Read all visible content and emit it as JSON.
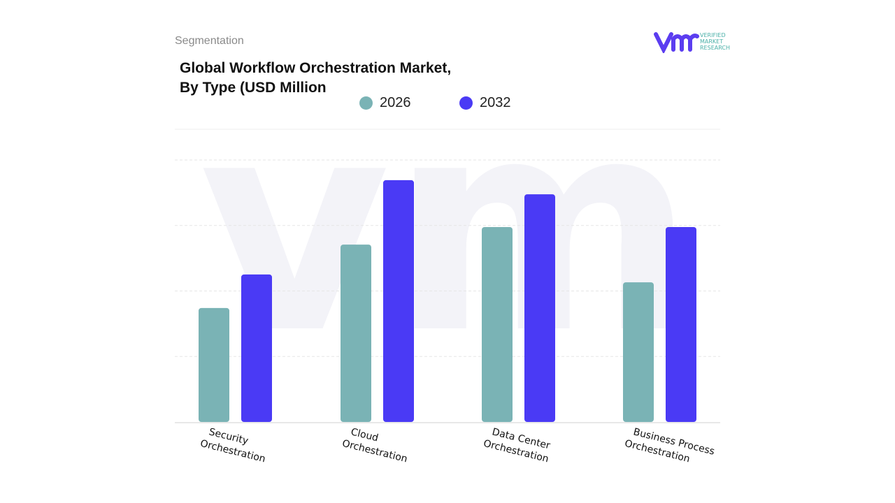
{
  "header": {
    "segment_label": "Segmentation",
    "logo": "VERIFIED MARKET RESEARCH"
  },
  "chart_data": {
    "type": "bar",
    "title": "Global Workflow Orchestration Market,\nBy Type (USD Million",
    "categories": [
      [
        "Security",
        "Orchestration"
      ],
      [
        "Cloud",
        "Orchestration"
      ],
      [
        "Data Center",
        "Orchestration"
      ],
      [
        "Business Process",
        "Orchestration"
      ]
    ],
    "series": [
      {
        "name": "2026",
        "color": "#7ab3b5",
        "values": [
          43.5,
          67.7,
          74.4,
          53.3
        ]
      },
      {
        "name": "2032",
        "color": "#4a3af5",
        "values": [
          56.3,
          92.3,
          86.9,
          74.4
        ]
      }
    ],
    "ylim": [
      0,
      100
    ],
    "y_axis_labels_shown": false,
    "grid": true,
    "legend_placement": "top-center"
  }
}
